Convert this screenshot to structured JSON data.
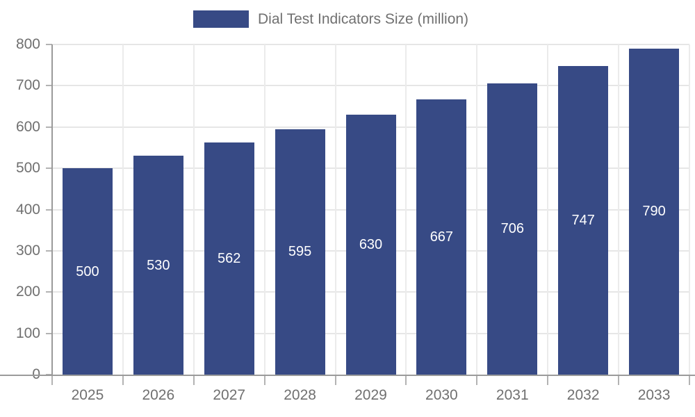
{
  "legend": {
    "label": "Dial Test Indicators Size (million)",
    "swatch_color": "#374a85"
  },
  "chart_data": {
    "type": "bar",
    "title": "Dial Test Indicators Size (million)",
    "categories": [
      "2025",
      "2026",
      "2027",
      "2028",
      "2029",
      "2030",
      "2031",
      "2032",
      "2033"
    ],
    "values": [
      500,
      530,
      562,
      595,
      630,
      667,
      706,
      747,
      790
    ],
    "xlabel": "",
    "ylabel": "",
    "ylim": [
      0,
      800
    ],
    "yticks": [
      0,
      100,
      200,
      300,
      400,
      500,
      600,
      700,
      800
    ],
    "grid": true,
    "legend_position": "top-center",
    "bar_color": "#374a85",
    "bar_label_color": "#ffffff"
  },
  "colors": {
    "background": "#ffffff",
    "bar": "#374a85",
    "axis_text": "#707070",
    "legend_text": "#707070",
    "grid_line": "#e6e6e6",
    "axis_line": "#9a9a9a",
    "tick_line": "#b3b3b3"
  }
}
